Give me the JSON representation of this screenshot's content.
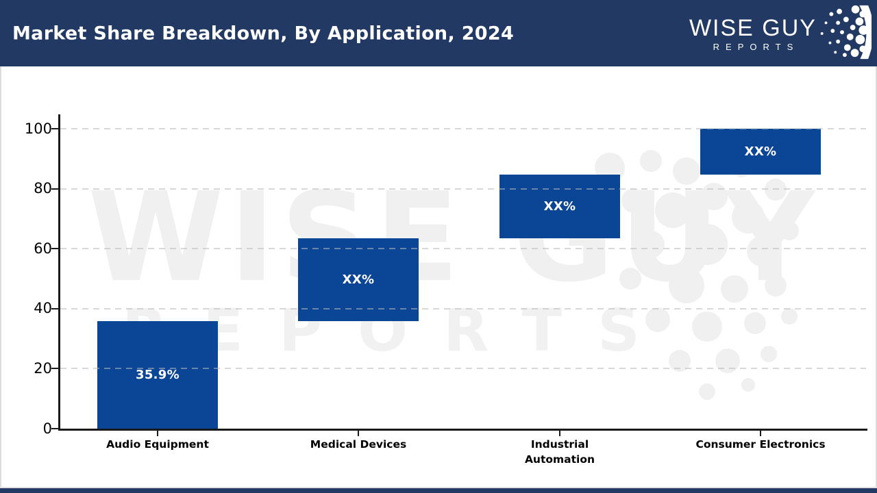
{
  "header": {
    "title": "Market Share Breakdown, By Application, 2024",
    "logo_line1": "WISE GUY",
    "logo_line2": "REPORTS",
    "bg_color": "#213963",
    "text_color": "#ffffff"
  },
  "watermark": {
    "big_text": "WISE GUY",
    "small_text": "REPORTS",
    "color": "#f0f0f0"
  },
  "chart_data": {
    "type": "bar",
    "subtype": "floating-cumulative-segments",
    "title": "Market Share Breakdown, By Application, 2024",
    "categories": [
      "Audio Equipment",
      "Medical Devices",
      "Industrial Automation",
      "Consumer Electronics"
    ],
    "segments": [
      {
        "category": "Audio Equipment",
        "start": 0,
        "end": 35.9,
        "label": "35.9%"
      },
      {
        "category": "Medical Devices",
        "start": 35.9,
        "end": 63.4,
        "label": "XX%"
      },
      {
        "category": "Industrial Automation",
        "start": 63.4,
        "end": 84.8,
        "label": "XX%"
      },
      {
        "category": "Consumer Electronics",
        "start": 84.8,
        "end": 100,
        "label": "XX%"
      }
    ],
    "xlabel": "",
    "ylabel": "",
    "ylim": [
      0,
      100
    ],
    "yticks": [
      0,
      20,
      40,
      60,
      80,
      100
    ],
    "grid": "horizontal-dashed",
    "legend": "none",
    "bar_color": "#0b4596",
    "bar_label_color": "#ffffff",
    "axis_color": "#1a1a1a",
    "gridline_color": "#d9d9d9"
  }
}
